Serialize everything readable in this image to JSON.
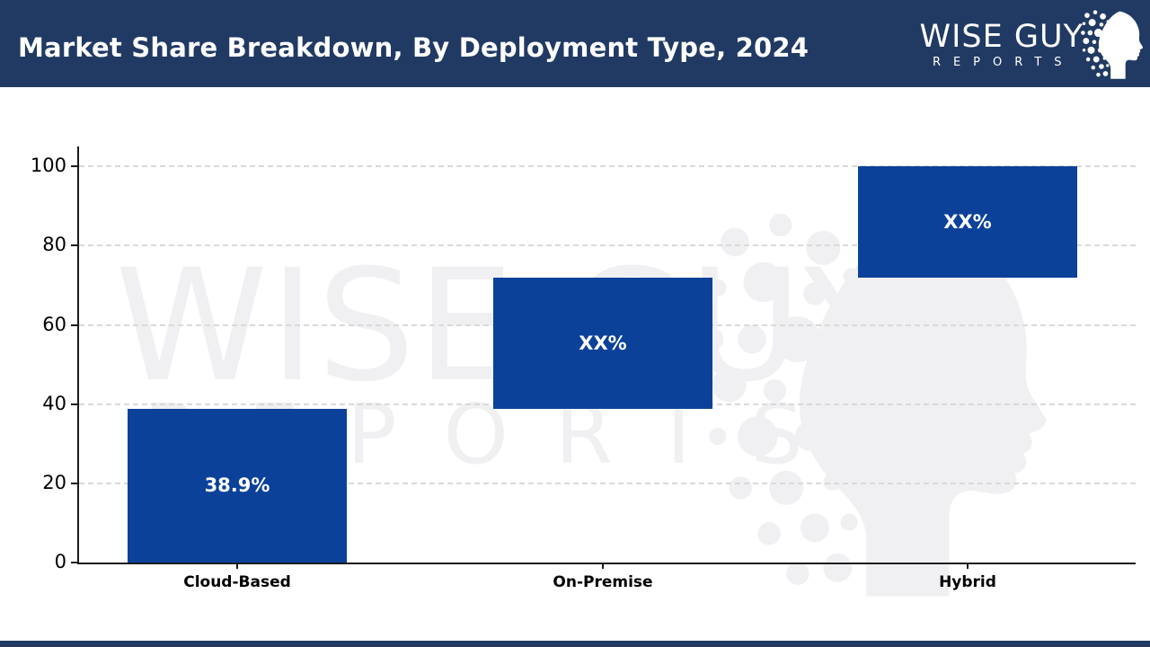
{
  "header": {
    "title": "Market Share Breakdown, By Deployment Type, 2024",
    "logo": {
      "line1": "WISE GUY",
      "line2": "REPORTS",
      "icon": "wise-guy-head-icon"
    }
  },
  "watermark": {
    "line1": "WISE GUY",
    "line2": "REPORTS",
    "icon": "wise-guy-head-icon"
  },
  "colors": {
    "header_bg": "#213a63",
    "footer_bg": "#213a63",
    "bar": "#0b4199",
    "bar_label": "#ffffff",
    "grid": "#d9d9d9",
    "axis": "#1a1a1a",
    "watermark": "#f0f0f2"
  },
  "chart_data": {
    "type": "bar",
    "subtype": "waterfall",
    "title": "Market Share Breakdown, By Deployment Type, 2024",
    "categories": [
      "Cloud-Based",
      "On-Premise",
      "Hybrid"
    ],
    "segments": [
      {
        "category": "Cloud-Based",
        "start": 0,
        "end": 38.9,
        "label": "38.9%"
      },
      {
        "category": "On-Premise",
        "start": 38.9,
        "end": 72,
        "label": "XX%"
      },
      {
        "category": "Hybrid",
        "start": 72,
        "end": 100,
        "label": "XX%"
      }
    ],
    "yticks": [
      0,
      20,
      40,
      60,
      80,
      100
    ],
    "ylim": [
      0,
      105
    ],
    "xlabel": "",
    "ylabel": "",
    "grid": "horizontal-dashed",
    "legend": "none"
  }
}
